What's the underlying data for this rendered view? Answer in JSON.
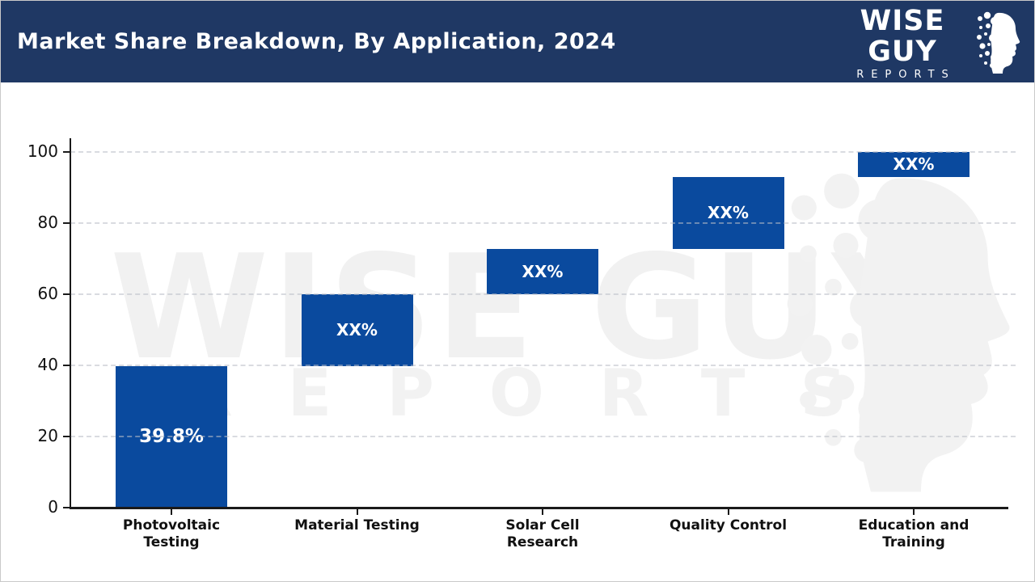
{
  "header": {
    "title": "Market Share Breakdown, By Application, 2024",
    "logo": {
      "line1": "WISE GUY",
      "line2": "REPORTS"
    }
  },
  "watermark": {
    "line1": "WISE GUY",
    "line2": "REPORTS"
  },
  "colors": {
    "header_bg": "#1f3864",
    "bar_blue": "#0a4a9e",
    "axis": "#1a1a1a",
    "grid": "#c3c8cf",
    "watermark": "#f1f1f1",
    "label_white": "#ffffff",
    "text_black": "#111111"
  },
  "chart_data": {
    "type": "bar",
    "subtype": "waterfall",
    "title": "Market Share Breakdown, By Application, 2024",
    "categories": [
      "Photovoltaic\nTesting",
      "Material Testing",
      "Solar Cell\nResearch",
      "Quality Control",
      "Education and\nTraining"
    ],
    "segments": [
      {
        "category": "Photovoltaic Testing",
        "start": 0,
        "end": 39.8,
        "label": "39.8%"
      },
      {
        "category": "Material Testing",
        "start": 39.8,
        "end": 60,
        "label": "XX%"
      },
      {
        "category": "Solar Cell Research",
        "start": 60,
        "end": 72.7,
        "label": "XX%"
      },
      {
        "category": "Quality Control",
        "start": 72.7,
        "end": 93,
        "label": "XX%"
      },
      {
        "category": "Education and Training",
        "start": 93,
        "end": 100,
        "label": "XX%"
      }
    ],
    "xlabel": "",
    "ylabel": "",
    "yticks": [
      0,
      20,
      40,
      60,
      80,
      100
    ],
    "ylim": [
      0,
      104
    ],
    "grid": "horizontal-dashed",
    "legend": "none",
    "bar_color": "#0a4a9e"
  }
}
